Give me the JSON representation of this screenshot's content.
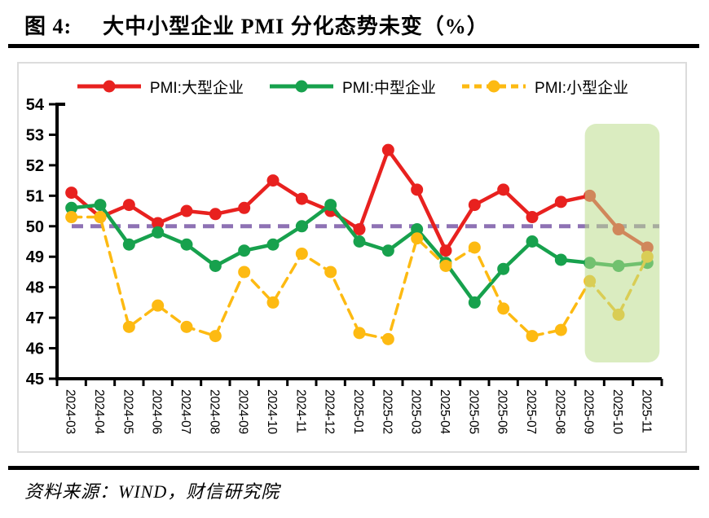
{
  "title": {
    "figure_label": "图 4:",
    "text": "大中小型企业 PMI 分化态势未变（%）"
  },
  "source_note": "资料来源：WIND，财信研究院",
  "chart_data": {
    "type": "line",
    "x": [
      "2024-03",
      "2024-04",
      "2024-05",
      "2024-06",
      "2024-07",
      "2024-08",
      "2024-09",
      "2024-10",
      "2024-11",
      "2024-12",
      "2025-01",
      "2025-02",
      "2025-03",
      "2025-04",
      "2025-05",
      "2025-06",
      "2025-07",
      "2025-08",
      "2025-09",
      "2025-10",
      "2025-11"
    ],
    "series": [
      {
        "key": "large",
        "name": "PMI:大型企业",
        "color": "#e8211f",
        "style": "solid",
        "values": [
          51.1,
          50.3,
          50.7,
          50.1,
          50.5,
          50.4,
          50.6,
          51.5,
          50.9,
          50.5,
          49.9,
          52.5,
          51.2,
          49.2,
          50.7,
          51.2,
          50.3,
          50.8,
          51.0,
          49.9,
          49.3
        ]
      },
      {
        "key": "medium",
        "name": "PMI:中型企业",
        "color": "#17a14d",
        "style": "solid",
        "values": [
          50.6,
          50.7,
          49.4,
          49.8,
          49.4,
          48.7,
          49.2,
          49.4,
          50.0,
          50.7,
          49.5,
          49.2,
          49.9,
          48.8,
          47.5,
          48.6,
          49.5,
          48.9,
          48.8,
          48.7,
          48.8
        ]
      },
      {
        "key": "small",
        "name": "PMI:小型企业",
        "color": "#fdba12",
        "style": "dashed",
        "values": [
          50.3,
          50.3,
          46.7,
          47.4,
          46.7,
          46.4,
          48.5,
          47.5,
          49.1,
          48.5,
          46.5,
          46.3,
          49.6,
          48.7,
          49.3,
          47.3,
          46.4,
          46.6,
          48.2,
          47.1,
          49.0
        ]
      }
    ],
    "ylim": [
      45,
      54
    ],
    "y_ticks": [
      45,
      46,
      47,
      48,
      49,
      50,
      51,
      52,
      53,
      54
    ],
    "reference_line": {
      "value": 50,
      "color": "#8e72b4",
      "style": "dashed"
    },
    "highlight_region": {
      "from": "2025-09",
      "to": "2025-11",
      "color": "#bcdc8c",
      "opacity": 0.55
    },
    "legend_position": "top",
    "grid": false,
    "ylabel": "",
    "xlabel": ""
  }
}
